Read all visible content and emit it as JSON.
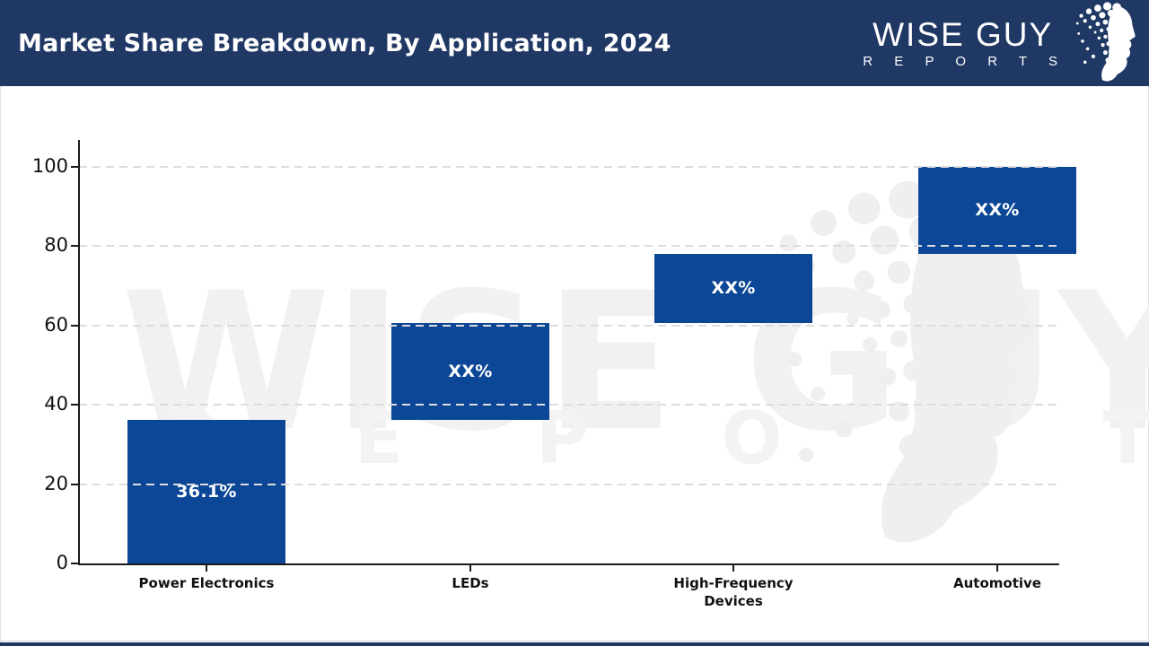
{
  "header": {
    "title": "Market Share Breakdown, By Application, 2024",
    "brand_line1": "WISE GUY",
    "brand_line2": "R E P O R T S"
  },
  "watermark": {
    "line1": "WISE GUY",
    "line2": "R E P O R T S"
  },
  "chart_data": {
    "type": "bar",
    "subtype": "waterfall",
    "title": "Market Share Breakdown, By Application, 2024",
    "categories": [
      "Power Electronics",
      "LEDs",
      "High-Frequency Devices",
      "Automotive"
    ],
    "segments": [
      {
        "category": "Power Electronics",
        "from": 0,
        "to": 36.1,
        "label": "36.1%"
      },
      {
        "category": "LEDs",
        "from": 36.1,
        "to": 60.6,
        "label": "XX%"
      },
      {
        "category": "High-Frequency Devices",
        "from": 60.6,
        "to": 78.1,
        "label": "XX%"
      },
      {
        "category": "Automotive",
        "from": 78.1,
        "to": 100,
        "label": "XX%"
      }
    ],
    "yticks": [
      0,
      20,
      40,
      60,
      80,
      100
    ],
    "ylim": [
      0,
      105
    ],
    "xlabel": "",
    "ylabel": "",
    "grid": "horizontal-dashed, drawn above bars",
    "legend": "none"
  },
  "colors": {
    "header_bg": "#203864",
    "footer_bg": "#203864",
    "bar_fill": "#0b4796",
    "bar_label_text": "#ffffff",
    "gridline": "#dcdcdc",
    "axis": "#1a1a1a",
    "tick_text": "#111111",
    "watermark": "#f1f1f1",
    "title_text": "#ffffff"
  }
}
